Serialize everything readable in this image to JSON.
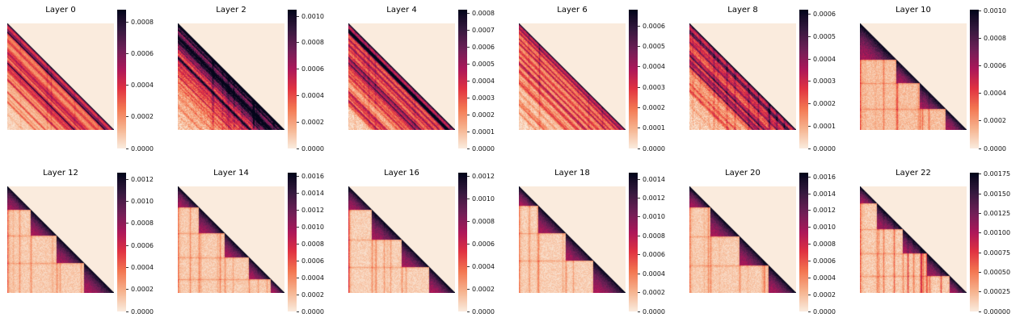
{
  "page": {
    "background": "#ffffff"
  },
  "chart_data": {
    "type": "heatmap",
    "layout": {
      "rows": 2,
      "cols": 6,
      "grid": "on? no - plain white figure background"
    },
    "matrix_structure": "Each panel is a square lower-triangular (causal) attention-style heatmap; the upper-right triangle is empty (value 0, light cream). The main diagonal is darkest; early layers show streaks parallel to the diagonal, later layers show block-diagonal segments.",
    "colormap": {
      "name": "rocket_r (0 = light cream, max = near black)",
      "stops": [
        [
          0.0,
          250,
          235,
          221
        ],
        [
          0.14,
          246,
          180,
          143
        ],
        [
          0.29,
          243,
          118,
          81
        ],
        [
          0.43,
          225,
          51,
          66
        ],
        [
          0.57,
          173,
          23,
          89
        ],
        [
          0.71,
          112,
          31,
          87
        ],
        [
          0.86,
          53,
          25,
          62
        ],
        [
          1.0,
          3,
          5,
          26
        ]
      ]
    },
    "subplots": [
      {
        "title": "Layer 0",
        "vmax": 0.00088,
        "tick_labels": [
          "0.0008",
          "0.0006",
          "0.0004",
          "0.0002",
          "0.0000"
        ],
        "tick_values": [
          0.0008,
          0.0006,
          0.0004,
          0.0002,
          0
        ],
        "pattern": {
          "kind": "streaks",
          "seed": 11,
          "base": 0.3,
          "nDiag": 36,
          "diagStrength": 0.6,
          "nVert": 5,
          "vertStrength": 0.08,
          "noise": 0.05,
          "description": "dense dark band at diagonal with many streaks parallel to it, fading toward lower-left"
        }
      },
      {
        "title": "Layer 2",
        "vmax": 0.00105,
        "tick_labels": [
          "0.0010",
          "0.0008",
          "0.0006",
          "0.0004",
          "0.0002",
          "0.0000"
        ],
        "tick_values": [
          0.001,
          0.0008,
          0.0006,
          0.0004,
          0.0002,
          0
        ],
        "pattern": {
          "kind": "streaks",
          "seed": 22,
          "base": 0.46,
          "nDiag": 55,
          "diagStrength": 0.5,
          "nVert": 20,
          "vertStrength": 0.2,
          "noise": 0.1,
          "description": "densely textured dark triangle with vertical streak lines"
        }
      },
      {
        "title": "Layer 4",
        "vmax": 0.00082,
        "tick_labels": [
          "0.0008",
          "0.0007",
          "0.0006",
          "0.0005",
          "0.0004",
          "0.0003",
          "0.0002",
          "0.0001",
          "0.0000"
        ],
        "tick_values": [
          0.0008,
          0.0007,
          0.0006,
          0.0005,
          0.0004,
          0.0003,
          0.0002,
          0.0001,
          0
        ],
        "pattern": {
          "kind": "streaks",
          "seed": 33,
          "base": 0.36,
          "nDiag": 48,
          "diagStrength": 0.55,
          "nVert": 10,
          "vertStrength": 0.12,
          "noise": 0.08,
          "description": "many fine streaks parallel to diagonal over an orange lower triangle"
        }
      },
      {
        "title": "Layer 6",
        "vmax": 0.00068,
        "tick_labels": [
          "0.0006",
          "0.0005",
          "0.0004",
          "0.0003",
          "0.0002",
          "0.0001",
          "0.0000"
        ],
        "tick_values": [
          0.0006,
          0.0005,
          0.0004,
          0.0003,
          0.0002,
          0.0001,
          0
        ],
        "pattern": {
          "kind": "streaks",
          "seed": 44,
          "base": 0.27,
          "nDiag": 40,
          "diagStrength": 0.5,
          "nVert": 8,
          "vertStrength": 0.1,
          "noise": 0.07,
          "description": "lighter triangle with thin diagonal streaks"
        }
      },
      {
        "title": "Layer 8",
        "vmax": 0.00062,
        "tick_labels": [
          "0.0006",
          "0.0005",
          "0.0004",
          "0.0003",
          "0.0002",
          "0.0001",
          "0.0000"
        ],
        "tick_values": [
          0.0006,
          0.0005,
          0.0004,
          0.0003,
          0.0002,
          0.0001,
          0
        ],
        "pattern": {
          "kind": "streaks",
          "seed": 55,
          "base": 0.38,
          "nDiag": 34,
          "diagStrength": 0.5,
          "nVert": 16,
          "vertStrength": 0.25,
          "noise": 0.09,
          "description": "dense orange triangle with pronounced vertical bands and emerging block edges"
        }
      },
      {
        "title": "Layer 10",
        "vmax": 0.00101,
        "tick_labels": [
          "0.0010",
          "0.0008",
          "0.0006",
          "0.0004",
          "0.0002",
          "0.0000"
        ],
        "tick_values": [
          0.001,
          0.0008,
          0.0006,
          0.0004,
          0.0002,
          0
        ],
        "pattern": {
          "kind": "blocks",
          "seed": 66,
          "bounds": [
            0,
            0.34,
            0.56,
            0.8,
            1
          ],
          "leftBase": 0.11,
          "nVert": 10,
          "vertStrength": 0.18,
          "noise": 0.06,
          "sink": 0.22,
          "description": "transition to block-diagonal: large dark triangular block at top then smaller blocks, faint left region"
        }
      },
      {
        "title": "Layer 12",
        "vmax": 0.00126,
        "tick_labels": [
          "0.0012",
          "0.0010",
          "0.0008",
          "0.0006",
          "0.0004",
          "0.0002",
          "0.0000"
        ],
        "tick_values": [
          0.0012,
          0.001,
          0.0008,
          0.0006,
          0.0004,
          0.0002,
          0
        ],
        "pattern": {
          "kind": "blocks",
          "seed": 77,
          "bounds": [
            0,
            0.22,
            0.46,
            0.72,
            1
          ],
          "leftBase": 0.08,
          "nVert": 8,
          "vertStrength": 0.12,
          "noise": 0.05,
          "sink": 0.25,
          "description": "staircase of dark triangular blocks along diagonal, very faint elsewhere"
        }
      },
      {
        "title": "Layer 14",
        "vmax": 0.00164,
        "tick_labels": [
          "0.0016",
          "0.0014",
          "0.0012",
          "0.0010",
          "0.0008",
          "0.0006",
          "0.0004",
          "0.0002",
          "0.0000"
        ],
        "tick_values": [
          0.0016,
          0.0014,
          0.0012,
          0.001,
          0.0008,
          0.0006,
          0.0004,
          0.0002,
          0
        ],
        "pattern": {
          "kind": "blocks",
          "seed": 88,
          "bounds": [
            0,
            0.2,
            0.44,
            0.67,
            0.87,
            1
          ],
          "leftBase": 0.08,
          "nVert": 8,
          "vertStrength": 0.12,
          "noise": 0.05,
          "sink": 0.2,
          "description": "block-diagonal dark triangles with faint vertical lines at block boundaries"
        }
      },
      {
        "title": "Layer 16",
        "vmax": 0.00123,
        "tick_labels": [
          "0.0012",
          "0.0010",
          "0.0008",
          "0.0006",
          "0.0004",
          "0.0002",
          "0.0000"
        ],
        "tick_values": [
          0.0012,
          0.001,
          0.0008,
          0.0006,
          0.0004,
          0.0002,
          0
        ],
        "pattern": {
          "kind": "blocks",
          "seed": 99,
          "bounds": [
            0,
            0.22,
            0.5,
            0.76,
            1
          ],
          "leftBase": 0.07,
          "nVert": 8,
          "vertStrength": 0.12,
          "noise": 0.05,
          "sink": 0.2,
          "description": "block-diagonal dark triangles, light left region with thin streaks"
        }
      },
      {
        "title": "Layer 18",
        "vmax": 0.00147,
        "tick_labels": [
          "0.0014",
          "0.0012",
          "0.0010",
          "0.0008",
          "0.0006",
          "0.0004",
          "0.0002",
          "0.0000"
        ],
        "tick_values": [
          0.0014,
          0.0012,
          0.001,
          0.0008,
          0.0006,
          0.0004,
          0.0002,
          0
        ],
        "pattern": {
          "kind": "blocks",
          "seed": 111,
          "bounds": [
            0,
            0.18,
            0.44,
            0.7,
            1
          ],
          "leftBase": 0.07,
          "nVert": 8,
          "vertStrength": 0.1,
          "noise": 0.05,
          "sink": 0.2,
          "description": "block-diagonal dark triangles along diagonal"
        }
      },
      {
        "title": "Layer 20",
        "vmax": 0.00165,
        "tick_labels": [
          "0.0016",
          "0.0014",
          "0.0012",
          "0.0010",
          "0.0008",
          "0.0006",
          "0.0004",
          "0.0002",
          "0.0000"
        ],
        "tick_values": [
          0.0016,
          0.0014,
          0.0012,
          0.001,
          0.0008,
          0.0006,
          0.0004,
          0.0002,
          0
        ],
        "pattern": {
          "kind": "blocks",
          "seed": 122,
          "bounds": [
            0,
            0.2,
            0.47,
            0.74,
            1
          ],
          "leftBase": 0.08,
          "nVert": 10,
          "vertStrength": 0.14,
          "noise": 0.05,
          "sink": 0.2,
          "description": "block-diagonal dark triangles with faint column streaks"
        }
      },
      {
        "title": "Layer 22",
        "vmax": 0.00177,
        "tick_labels": [
          "0.00175",
          "0.00150",
          "0.00125",
          "0.00100",
          "0.00075",
          "0.00050",
          "0.00025",
          "0.00000"
        ],
        "tick_values": [
          0.00175,
          0.0015,
          0.00125,
          0.001,
          0.00075,
          0.0005,
          0.00025,
          0
        ],
        "pattern": {
          "kind": "blocks",
          "seed": 133,
          "bounds": [
            0,
            0.16,
            0.4,
            0.63,
            0.84,
            1
          ],
          "leftBase": 0.08,
          "nVert": 14,
          "vertStrength": 0.3,
          "noise": 0.06,
          "sink": 0.25,
          "description": "block-diagonal dark triangles plus several strong dark vertical lines spanning the triangle"
        }
      }
    ]
  }
}
